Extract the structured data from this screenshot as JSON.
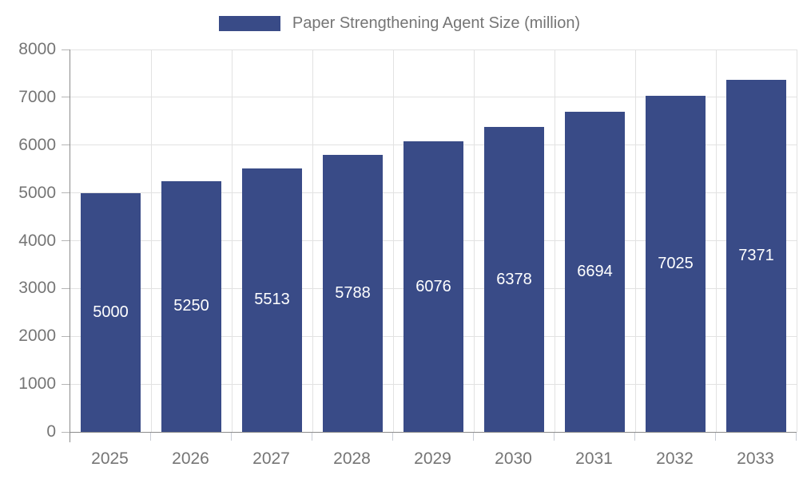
{
  "legend": {
    "label": "Paper Strengthening Agent Size (million)"
  },
  "chart_data": {
    "type": "bar",
    "title": "Paper Strengthening Agent Size (million)",
    "categories": [
      "2025",
      "2026",
      "2027",
      "2028",
      "2029",
      "2030",
      "2031",
      "2032",
      "2033"
    ],
    "values": [
      5000,
      5250,
      5513,
      5788,
      6076,
      6378,
      6694,
      7025,
      7371
    ],
    "xlabel": "",
    "ylabel": "",
    "ylim": [
      0,
      8000
    ],
    "yticks": [
      0,
      1000,
      2000,
      3000,
      4000,
      5000,
      6000,
      7000,
      8000
    ],
    "grid": true,
    "legend_position": "top",
    "bar_color": "#394B87",
    "bar_value_label_color": "#ffffff",
    "axis_color": "#8c8c8c",
    "grid_color": "#e2e2e2",
    "text_color": "#757575"
  }
}
